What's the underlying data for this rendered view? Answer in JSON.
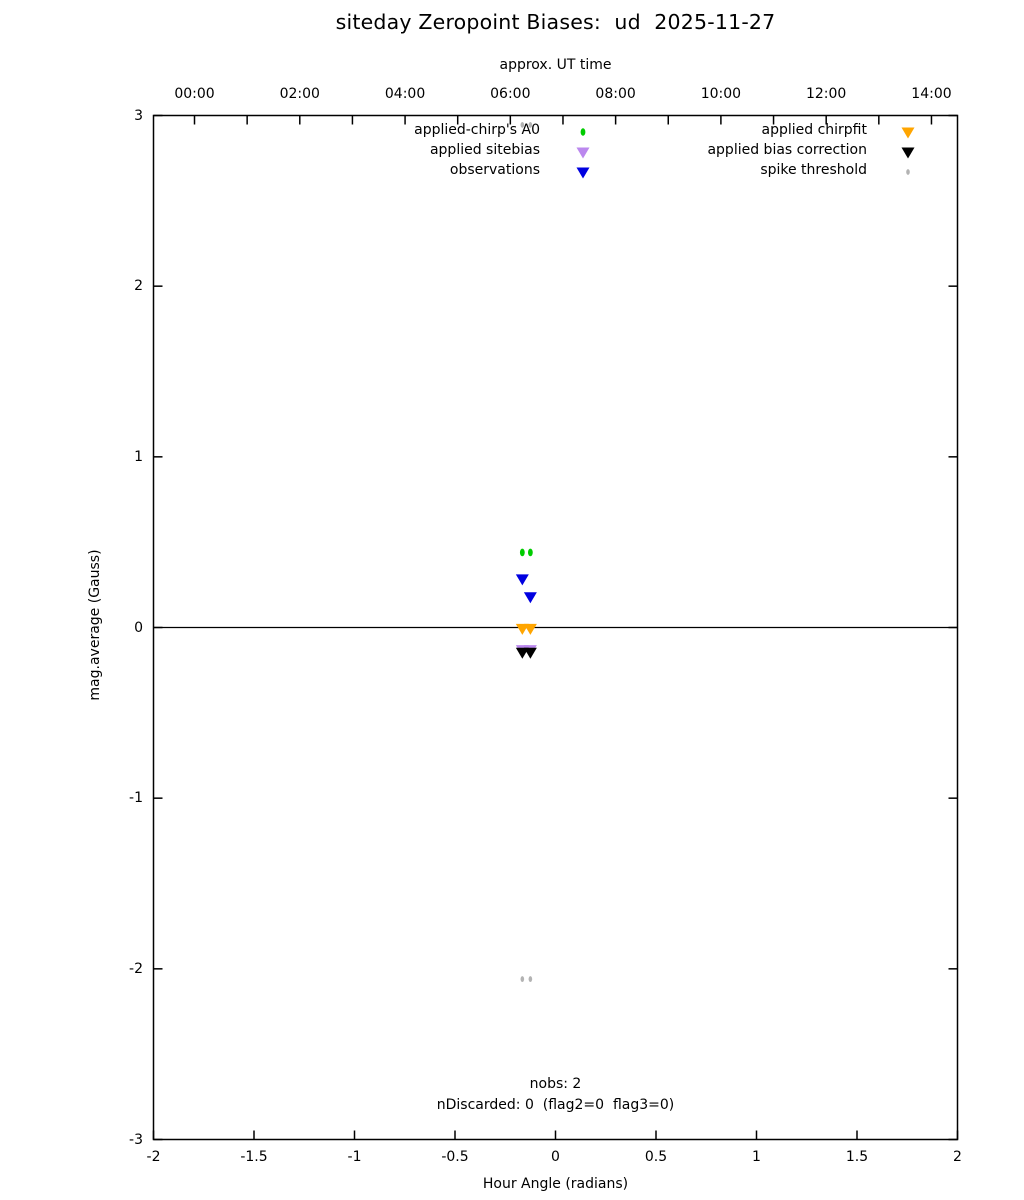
{
  "chart_data": {
    "type": "scatter",
    "title": "siteday Zeropoint Biases:  ud  2025-11-27",
    "xlabel": "Hour Angle (radians)",
    "ylabel": "mag.average (Gauss)",
    "xlim": [
      -2,
      2
    ],
    "ylim": [
      -3,
      3
    ],
    "grid": false,
    "zero_line": true,
    "border_color": "#000000",
    "top_axis": {
      "label": "approx. UT time",
      "ticks": [
        {
          "label": "00:00",
          "ha": -1.796
        },
        {
          "label": "02:00",
          "ha": -1.2722
        },
        {
          "label": "04:00",
          "ha": -0.7484
        },
        {
          "label": "06:00",
          "ha": -0.2247
        },
        {
          "label": "08:00",
          "ha": 0.2991
        },
        {
          "label": "10:00",
          "ha": 0.8229
        },
        {
          "label": "12:00",
          "ha": 1.3467
        },
        {
          "label": "14:00",
          "ha": 1.8705
        }
      ]
    },
    "x_ticks": [
      {
        "label": "-2",
        "v": -2
      },
      {
        "label": "-1.5",
        "v": -1.5
      },
      {
        "label": "-1",
        "v": -1
      },
      {
        "label": "-0.5",
        "v": -0.5
      },
      {
        "label": "0",
        "v": 0
      },
      {
        "label": "0.5",
        "v": 0.5
      },
      {
        "label": "1",
        "v": 1
      },
      {
        "label": "1.5",
        "v": 1.5
      },
      {
        "label": "2",
        "v": 2
      }
    ],
    "y_ticks": [
      {
        "label": "3",
        "v": 3
      },
      {
        "label": "2",
        "v": 2
      },
      {
        "label": "1",
        "v": 1
      },
      {
        "label": "0",
        "v": 0
      },
      {
        "label": "-1",
        "v": -1
      },
      {
        "label": "-2",
        "v": -2
      },
      {
        "label": "-3",
        "v": -3
      }
    ],
    "legend": {
      "left": [
        {
          "label": "applied-chirp's A0",
          "marker": "dot",
          "color": "#00cc00"
        },
        {
          "label": "applied sitebias",
          "marker": "triangle-down",
          "color": "#bb88ee"
        },
        {
          "label": "observations",
          "marker": "triangle-down",
          "color": "#0000e0"
        }
      ],
      "right": [
        {
          "label": "applied chirpfit",
          "marker": "triangle-down",
          "color": "#ffa500"
        },
        {
          "label": "applied bias correction",
          "marker": "triangle-down",
          "color": "#000000"
        },
        {
          "label": "spike threshold",
          "marker": "small-dot",
          "color": "#b3b3b3"
        }
      ]
    },
    "series": [
      {
        "name": "applied sitebias",
        "marker": "triangle-down",
        "color": "#bb88ee",
        "points": [
          [
            -0.165,
            -0.13
          ],
          [
            -0.125,
            -0.13
          ]
        ]
      },
      {
        "name": "applied bias correction",
        "marker": "triangle-down",
        "color": "#000000",
        "points": [
          [
            -0.165,
            -0.145
          ],
          [
            -0.125,
            -0.145
          ]
        ]
      },
      {
        "name": "applied chirpfit",
        "marker": "triangle-down",
        "color": "#ffa500",
        "points": [
          [
            -0.165,
            -0.005
          ],
          [
            -0.125,
            -0.005
          ]
        ]
      },
      {
        "name": "observations",
        "marker": "triangle-down",
        "color": "#0000e0",
        "points": [
          [
            -0.165,
            0.285
          ],
          [
            -0.125,
            0.18
          ]
        ]
      },
      {
        "name": "applied-chirp's A0",
        "marker": "dot",
        "color": "#00cc00",
        "points": [
          [
            -0.165,
            0.44
          ],
          [
            -0.125,
            0.44
          ]
        ]
      },
      {
        "name": "spike threshold",
        "marker": "small-dot",
        "color": "#b3b3b3",
        "points": [
          [
            -0.165,
            2.945
          ],
          [
            -0.125,
            2.945
          ],
          [
            -0.165,
            -2.06
          ],
          [
            -0.125,
            -2.06
          ]
        ]
      }
    ],
    "annotations": {
      "nobs": "nobs: 2",
      "ndiscarded": "nDiscarded: 0  (flag2=0  flag3=0)"
    }
  }
}
